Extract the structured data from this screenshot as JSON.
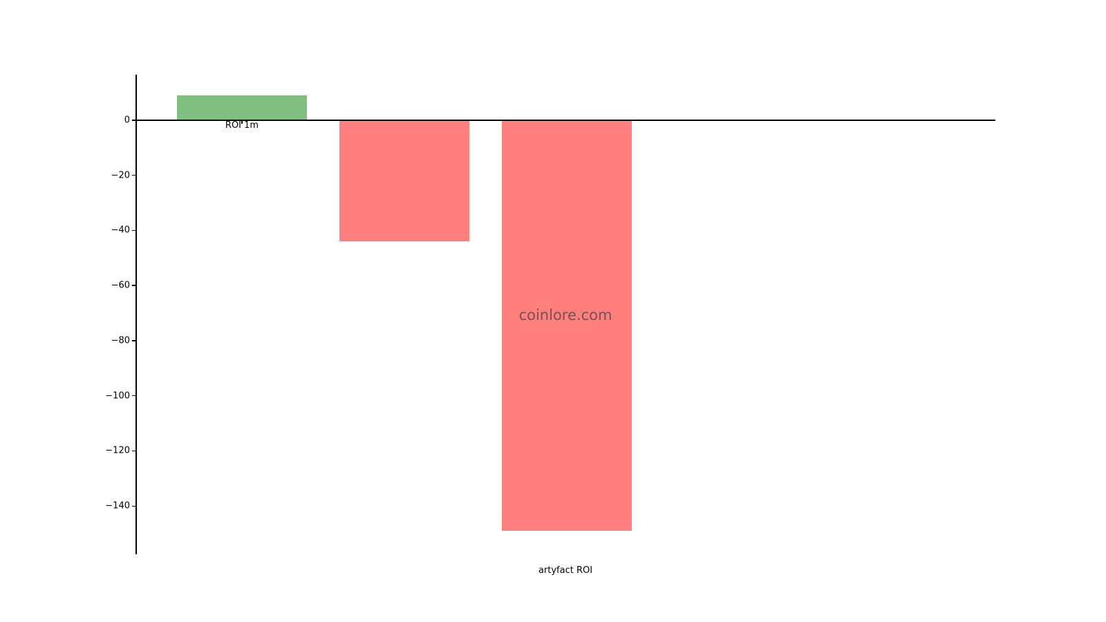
{
  "chart_data": {
    "type": "bar",
    "categories": [
      "ROI 1m",
      "",
      ""
    ],
    "values": [
      9,
      -44,
      -149
    ],
    "bar_colors": [
      "#7fbf7f",
      "#ff7f7f",
      "#ff7f7f"
    ],
    "title": "",
    "xlabel": "artyfact ROI",
    "ylabel": "",
    "ylim": [
      -157.5,
      16.5
    ],
    "yticks": [
      0,
      -20,
      -40,
      -60,
      -80,
      -100,
      -120,
      -140
    ],
    "ytick_labels": [
      "0",
      "−20",
      "−40",
      "−60",
      "−80",
      "−100",
      "−120",
      "−140"
    ],
    "grid": false,
    "legend_position": "none",
    "watermark": "coinlore.com",
    "positive_color": "#7fbf7f",
    "negative_color": "#ff7f7f",
    "axis_color": "#000000",
    "background_color": "#ffffff"
  }
}
